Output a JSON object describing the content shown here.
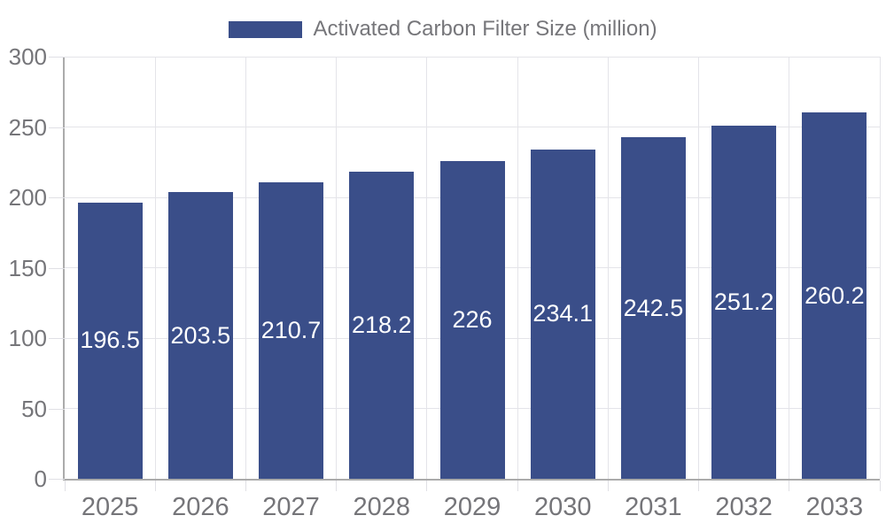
{
  "chart_data": {
    "type": "bar",
    "title": "",
    "legend": "Activated Carbon Filter Size (million)",
    "legend_position": "top",
    "categories": [
      "2025",
      "2026",
      "2027",
      "2028",
      "2029",
      "2030",
      "2031",
      "2032",
      "2033"
    ],
    "series": [
      {
        "name": "Activated Carbon Filter Size (million)",
        "values": [
          196.5,
          203.5,
          210.7,
          218.2,
          226,
          234.1,
          242.5,
          251.2,
          260.2
        ],
        "value_labels": [
          "196.5",
          "203.5",
          "210.7",
          "218.2",
          "226",
          "234.1",
          "242.5",
          "251.2",
          "260.2"
        ]
      }
    ],
    "xlabel": "",
    "ylabel": "",
    "ylim": [
      0,
      300
    ],
    "yticks": [
      0,
      50,
      100,
      150,
      200,
      250,
      300
    ],
    "grid": true
  },
  "colors": {
    "bar": "#3A4E89",
    "grid": "#E4E4E9",
    "axis": "#ABABAB",
    "tick": "#E0E0E5",
    "axis_text": "#757579",
    "legend_text": "#76767A",
    "bar_label": "#FFFFFF"
  }
}
